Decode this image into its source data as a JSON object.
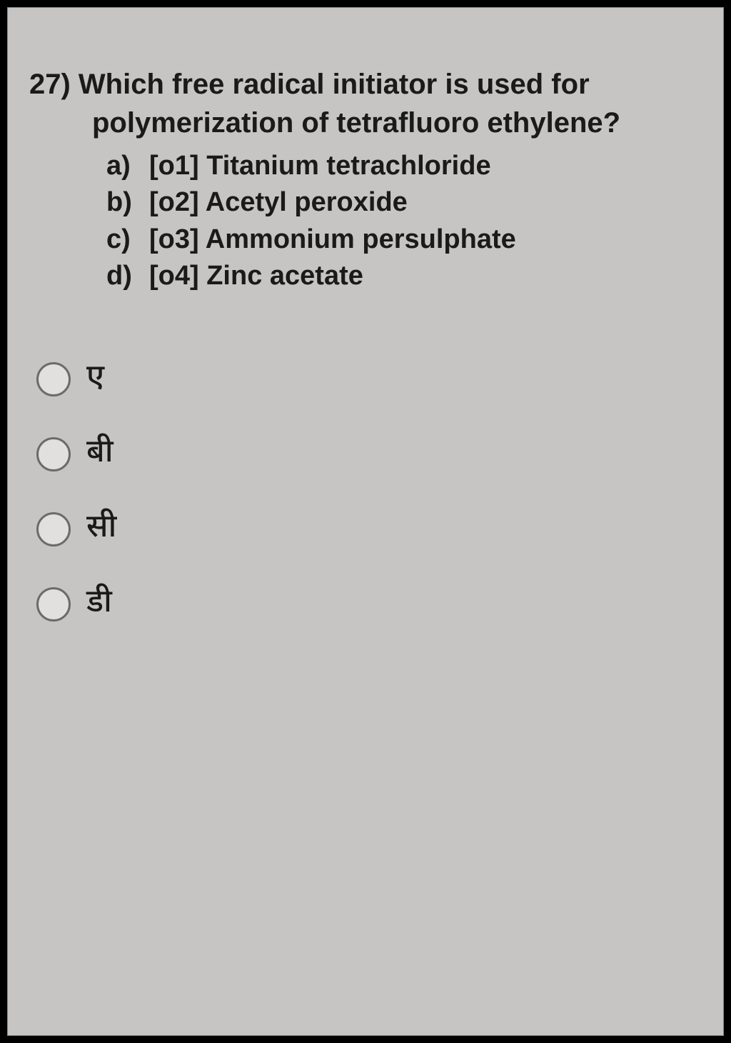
{
  "question": {
    "number": "27)",
    "line1": "27) Which free radical initiator is used for",
    "line2": "polymerization of tetrafluoro ethylene?",
    "options": [
      {
        "letter": "a)",
        "text": "[o1] Titanium tetrachloride"
      },
      {
        "letter": "b)",
        "text": "[o2] Acetyl peroxide"
      },
      {
        "letter": "c)",
        "text": "[o3] Ammonium persulphate"
      },
      {
        "letter": "d)",
        "text": "[o4] Zinc acetate"
      }
    ]
  },
  "radios": [
    {
      "label": "ए"
    },
    {
      "label": "बी"
    },
    {
      "label": "सी"
    },
    {
      "label": "डी"
    }
  ],
  "colors": {
    "page_bg": "#c7c5c3",
    "outer_bg": "#000000",
    "text": "#1a1a1a",
    "radio_border": "#6b6b6b",
    "radio_fill": "#e2e0de"
  },
  "typography": {
    "question_fontsize": 40,
    "option_fontsize": 38,
    "radio_label_fontsize": 44,
    "font_weight": "bold"
  }
}
